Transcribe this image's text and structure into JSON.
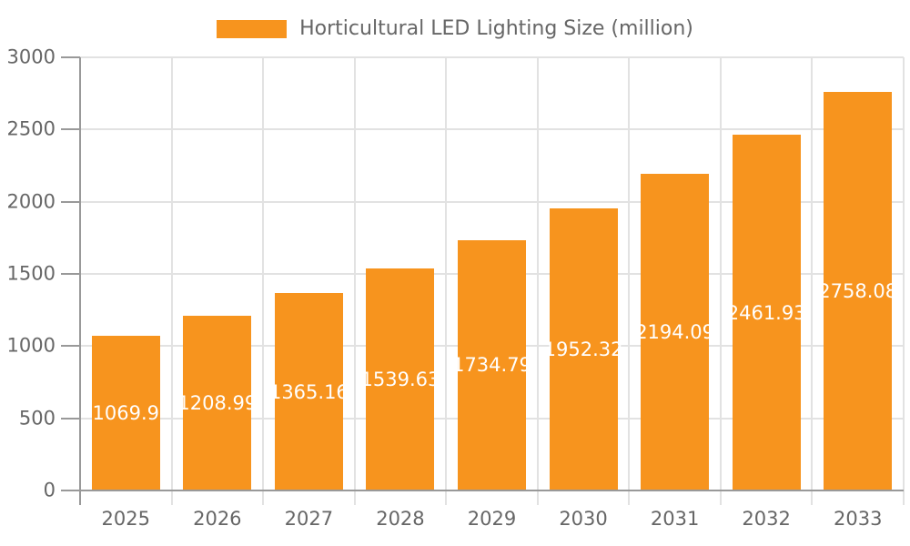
{
  "legend": {
    "label": "Horticultural LED Lighting Size (million)",
    "swatch_color": "#F7941E"
  },
  "chart_data": {
    "type": "bar",
    "title": "Horticultural LED Lighting Size (million)",
    "categories": [
      "2025",
      "2026",
      "2027",
      "2028",
      "2029",
      "2030",
      "2031",
      "2032",
      "2033"
    ],
    "series": [
      {
        "name": "Horticultural LED Lighting Size (million)",
        "values": [
          1069.9,
          1208.99,
          1365.16,
          1539.63,
          1734.79,
          1952.32,
          2194.09,
          2461.93,
          2758.08
        ],
        "labels": [
          "1069.9",
          "1208.99",
          "1365.16",
          "1539.63",
          "1734.79",
          "1952.32",
          "2194.09",
          "2461.93",
          "2758.08"
        ]
      }
    ],
    "xlabel": "",
    "ylabel": "",
    "ylim": [
      0,
      3000
    ],
    "yticks": [
      0,
      500,
      1000,
      1500,
      2000,
      2500,
      3000
    ],
    "grid": true,
    "legend_position": "top-center",
    "bar_label_position": "inside-middle"
  },
  "colors": {
    "bar": "#F7941E",
    "bar_label": "#FFFFFF",
    "axis_text": "#666666",
    "axis_line": "#999999",
    "gridline": "#E2E2E2",
    "background": "#FFFFFF"
  }
}
